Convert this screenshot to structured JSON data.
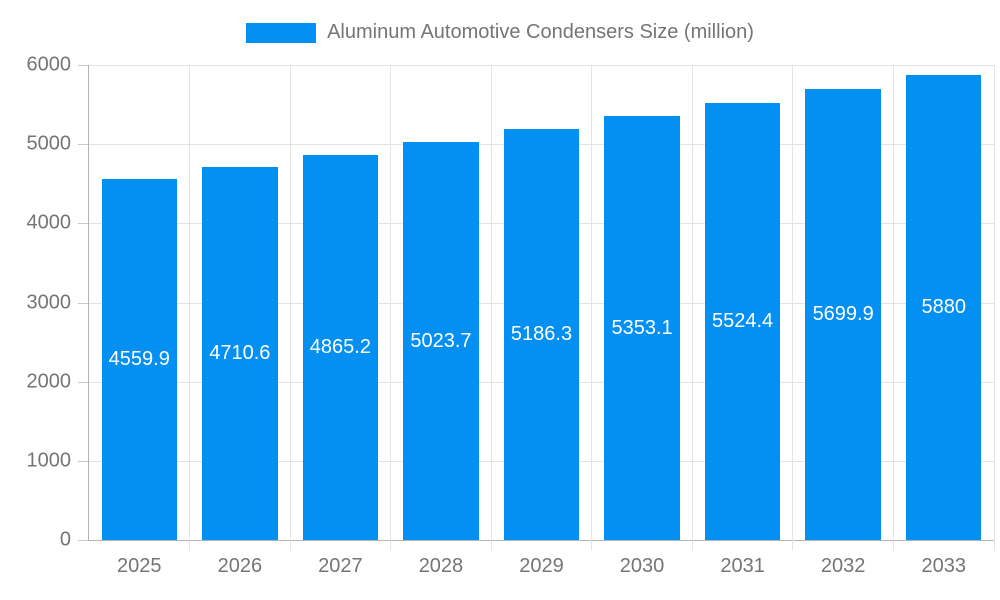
{
  "chart_data": {
    "type": "bar",
    "title": "Aluminum Automotive Condensers Size (million)",
    "categories": [
      "2025",
      "2026",
      "2027",
      "2028",
      "2029",
      "2030",
      "2031",
      "2032",
      "2033"
    ],
    "values": [
      4559.9,
      4710.6,
      4865.2,
      5023.7,
      5186.3,
      5353.1,
      5524.4,
      5699.9,
      5880
    ],
    "value_labels": [
      "4559.9",
      "4710.6",
      "4865.2",
      "5023.7",
      "5186.3",
      "5353.1",
      "5524.4",
      "5699.9",
      "5880"
    ],
    "xlabel": "",
    "ylabel": "",
    "ylim": [
      0,
      6000
    ],
    "yticks": [
      "0",
      "1000",
      "2000",
      "3000",
      "4000",
      "5000",
      "6000"
    ],
    "ytick_values": [
      0,
      1000,
      2000,
      3000,
      4000,
      5000,
      6000
    ],
    "grid": "on",
    "legend_position": "top-center",
    "colors": {
      "bar": "#0490f2",
      "axis_line": "#b3b3b3",
      "gridline": "#e4e4e4",
      "tick": "#c9c9c9",
      "axis_text": "#757575",
      "value_text": "#ffffff",
      "background": "#ffffff"
    },
    "bar_width_fraction": 0.75,
    "value_label_position": "center-of-bar"
  }
}
